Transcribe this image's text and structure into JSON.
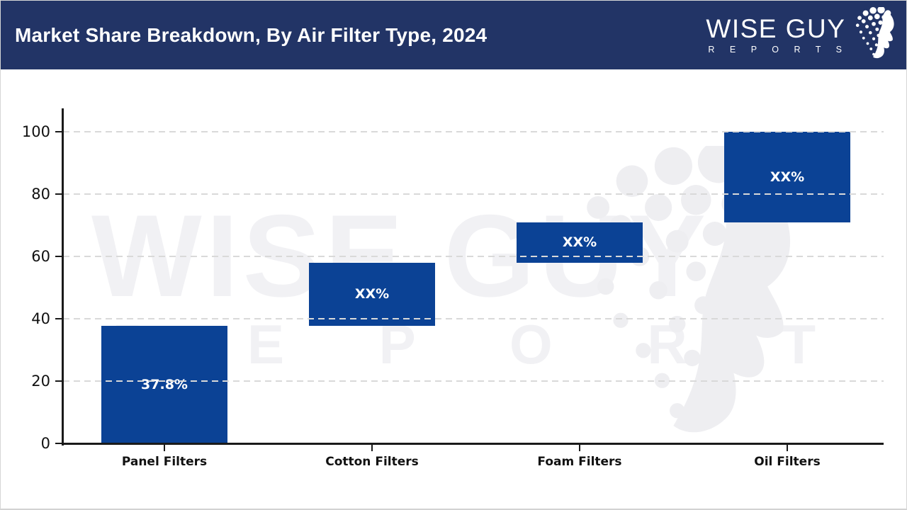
{
  "header": {
    "title": "Market Share Breakdown, By Air Filter Type, 2024",
    "logo": {
      "line1": "WISE GUY",
      "line2": "R E P O R T S"
    }
  },
  "watermark": {
    "line1": "WISE GUY",
    "line2": "R E P O R T S"
  },
  "colors": {
    "header_bg": "#223466",
    "bar_fill": "#0b4295",
    "on_bar_text": "#ffffff",
    "grid": "#d9d9d9",
    "axis": "#1a1a1a",
    "watermark": "#f1f1f4"
  },
  "chart_data": {
    "type": "bar",
    "subtype": "waterfall",
    "title": "Market Share Breakdown, By Air Filter Type, 2024",
    "categories": [
      "Panel Filters",
      "Cotton Filters",
      "Foam Filters",
      "Oil Filters"
    ],
    "segments": [
      {
        "category": "Panel Filters",
        "start": 0,
        "end": 37.8,
        "label": "37.8%"
      },
      {
        "category": "Cotton Filters",
        "start": 37.8,
        "end": 58,
        "label": "XX%"
      },
      {
        "category": "Foam Filters",
        "start": 58,
        "end": 71,
        "label": "XX%"
      },
      {
        "category": "Oil Filters",
        "start": 71,
        "end": 100,
        "label": "XX%"
      }
    ],
    "ylim": [
      0,
      100
    ],
    "yticks": [
      0,
      20,
      40,
      60,
      80,
      100
    ],
    "xlabel": "",
    "ylabel": "",
    "grid": "horizontal-dashed",
    "legend": null,
    "bar_color": "#0b4295",
    "value_label_color": "#ffffff",
    "notes": "XX% labels mask undisclosed values; segment boundaries read from axis"
  }
}
